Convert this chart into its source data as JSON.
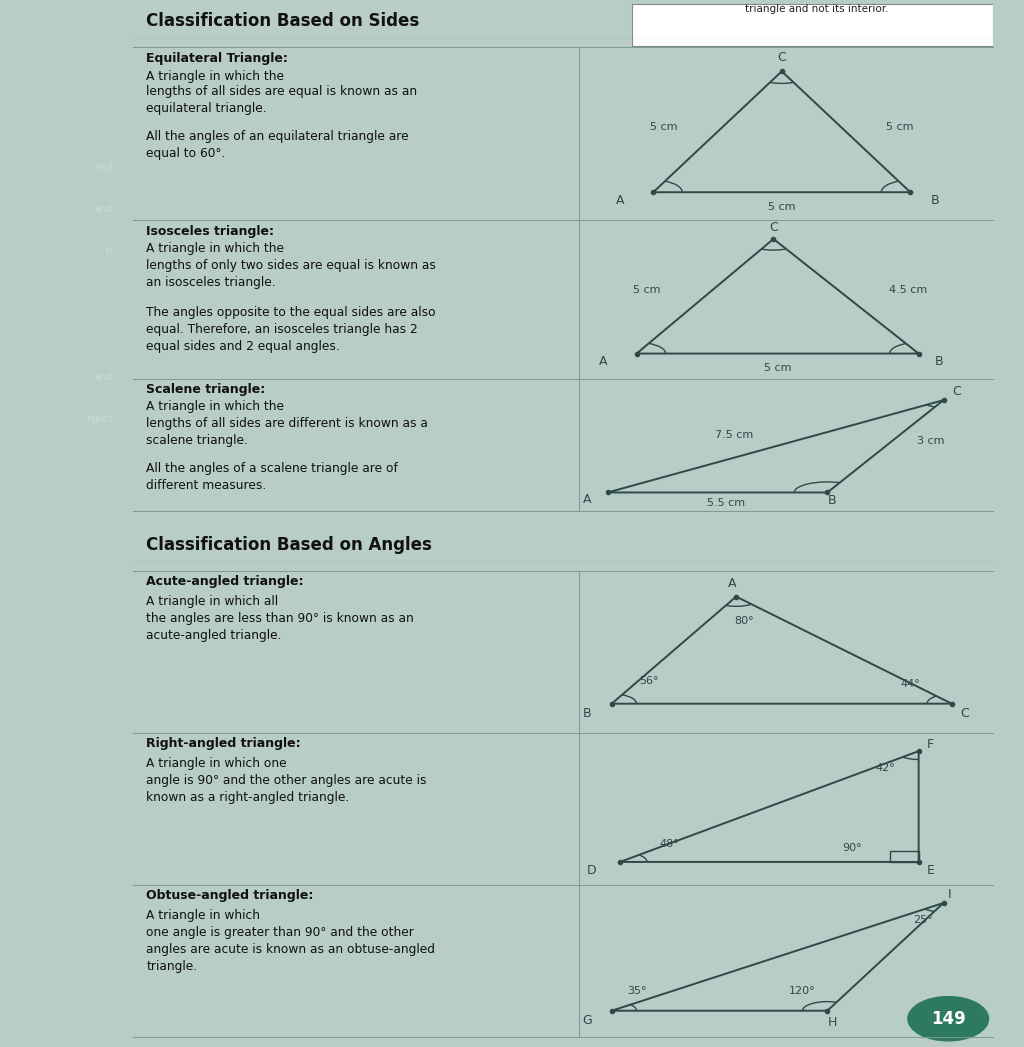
{
  "title_sides": "Classification Based on Sides",
  "title_angles": "Classification Based on Angles",
  "bg_color": "#b8ccc8",
  "panel_bg": "#9db8b2",
  "left_bar_color": "#2d6b5e",
  "triangle_color": "#2d4a45",
  "page_number": "149",
  "page_num_bg": "#2d7a5e",
  "top_note": "triangle and not its interior.",
  "eq_bold": "Equilateral Triangle:",
  "eq_text1": " A triangle in which the\nlengths of all sides are equal is known as an\nequilateral triangle.",
  "eq_text2": "All the angles of an equilateral triangle are\nequal to 60°.",
  "iso_bold": "Isosceles triangle:",
  "iso_text1": " A triangle in which the\nlengths of only two sides are equal is known as\nan isosceles triangle.",
  "iso_text2": "The angles opposite to the equal sides are also\nequal. Therefore, an isosceles triangle has 2\nequal sides and 2 equal angles.",
  "sc_bold": "Scalene triangle:",
  "sc_text1": " A triangle in which the\nlengths of all sides are different is known as a\nscalene triangle.",
  "sc_text2": "All the angles of a scalene triangle are of\ndifferent measures.",
  "ac_bold": "Acute-angled triangle:",
  "ac_text": " A triangle in which all\nthe angles are less than 90° is known as an\nacute-angled triangle.",
  "rt_bold": "Right-angled triangle:",
  "rt_text": " A triangle in which one\nangle is 90° and the other angles are acute is\nknown as a right-angled triangle.",
  "ob_bold": "Obtuse-angled triangle:",
  "ob_text": " A triangle in which\none angle is greater than 90° and the other\nangles are acute is known as an obtuse-angled\ntriangle."
}
